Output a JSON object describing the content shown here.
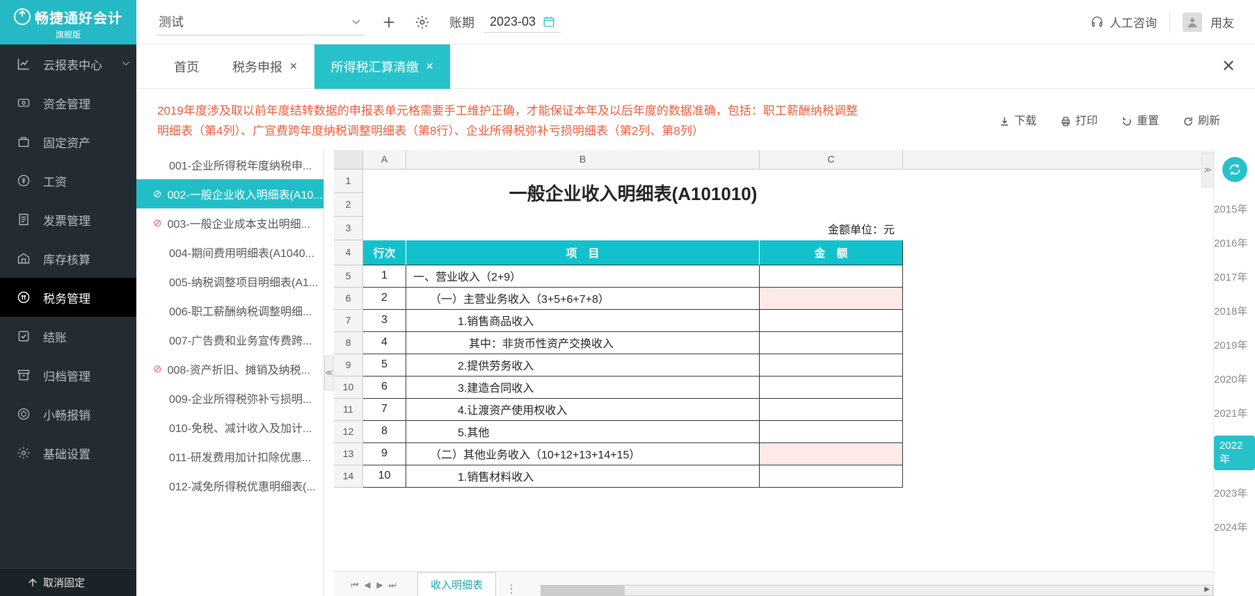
{
  "brand": {
    "name": "畅捷通好会计",
    "edition": "旗舰版"
  },
  "header": {
    "company": "测试",
    "period_label": "账期",
    "period_value": "2023-03",
    "support": "人工咨询",
    "user": "用友"
  },
  "sidebar": {
    "items": [
      {
        "icon": "chart",
        "label": "云报表中心"
      },
      {
        "icon": "money",
        "label": "资金管理"
      },
      {
        "icon": "asset",
        "label": "固定资产"
      },
      {
        "icon": "salary",
        "label": "工资"
      },
      {
        "icon": "invoice",
        "label": "发票管理"
      },
      {
        "icon": "stock",
        "label": "库存核算"
      },
      {
        "icon": "tax",
        "label": "税务管理"
      },
      {
        "icon": "close-book",
        "label": "结账"
      },
      {
        "icon": "archive",
        "label": "归档管理"
      },
      {
        "icon": "reimburse",
        "label": "小畅报销"
      },
      {
        "icon": "settings",
        "label": "基础设置"
      }
    ],
    "active_index": 6,
    "unpin": "取消固定"
  },
  "tabs": {
    "items": [
      {
        "label": "首页",
        "closable": false
      },
      {
        "label": "税务申报",
        "closable": true
      },
      {
        "label": "所得税汇算清缴",
        "closable": true
      }
    ],
    "active_index": 2
  },
  "notice": "2019年度涉及取以前年度结转数据的申报表单元格需要手工维护正确，才能保证本年及以后年度的数据准确，包括：职工薪酬纳税调整明细表（第4列）、广宣费跨年度纳税调整明细表（第8行）、企业所得税弥补亏损明细表（第2列、第8列）",
  "actions": {
    "download": "下载",
    "print": "打印",
    "reset": "重置",
    "refresh": "刷新"
  },
  "formList": {
    "active_index": 1,
    "items": [
      {
        "warn": false,
        "label": "001-企业所得税年度纳税申..."
      },
      {
        "warn": true,
        "label": "002-一般企业收入明细表(A10..."
      },
      {
        "warn": true,
        "label": "003-一般企业成本支出明细..."
      },
      {
        "warn": false,
        "label": "004-期间费用明细表(A1040..."
      },
      {
        "warn": false,
        "label": "005-纳税调整项目明细表(A1..."
      },
      {
        "warn": false,
        "label": "006-职工薪酬纳税调整明细..."
      },
      {
        "warn": false,
        "label": "007-广告费和业务宣传费跨..."
      },
      {
        "warn": true,
        "label": "008-资产折旧、摊销及纳税..."
      },
      {
        "warn": false,
        "label": "009-企业所得税弥补亏损明..."
      },
      {
        "warn": false,
        "label": "010-免税、减计收入及加计..."
      },
      {
        "warn": false,
        "label": "011-研发费用加计扣除优惠..."
      },
      {
        "warn": false,
        "label": "012-减免所得税优惠明细表(..."
      }
    ]
  },
  "sheet": {
    "title": "一般企业收入明细表(A101010)",
    "unit_label": "金额单位：元",
    "columns": {
      "letters": [
        "A",
        "B",
        "C"
      ],
      "widths": [
        62,
        508,
        206
      ]
    },
    "headers": {
      "a": "行次",
      "b": "项　目",
      "c": "金　额"
    },
    "rows": [
      {
        "n": "1",
        "item": "一、营业收入（2+9）",
        "pink": false
      },
      {
        "n": "2",
        "item": "　　（一）主营业务收入（3+5+6+7+8）",
        "pink": true
      },
      {
        "n": "3",
        "item": "　　　　1.销售商品收入",
        "pink": false
      },
      {
        "n": "4",
        "item": "　　　　　其中：非货币性资产交换收入",
        "pink": false
      },
      {
        "n": "5",
        "item": "　　　　2.提供劳务收入",
        "pink": false
      },
      {
        "n": "6",
        "item": "　　　　3.建造合同收入",
        "pink": false
      },
      {
        "n": "7",
        "item": "　　　　4.让渡资产使用权收入",
        "pink": false
      },
      {
        "n": "8",
        "item": "　　　　5.其他",
        "pink": false
      },
      {
        "n": "9",
        "item": "　　（二）其他业务收入（10+12+13+14+15）",
        "pink": true
      },
      {
        "n": "10",
        "item": "　　　　1.销售材料收入",
        "pink": false
      }
    ],
    "tab_label": "收入明细表"
  },
  "years": {
    "list": [
      "2015年",
      "2016年",
      "2017年",
      "2018年",
      "2019年",
      "2020年",
      "2021年",
      "2022年",
      "2023年",
      "2024年"
    ],
    "current": "2022年"
  },
  "colors": {
    "brand": "#24b9c5",
    "accent": "#27c1c9",
    "sidebar_bg": "#222c32",
    "warn": "#ee5b3b",
    "table_head": "#13c1cc",
    "pink": "#fde9e6"
  }
}
